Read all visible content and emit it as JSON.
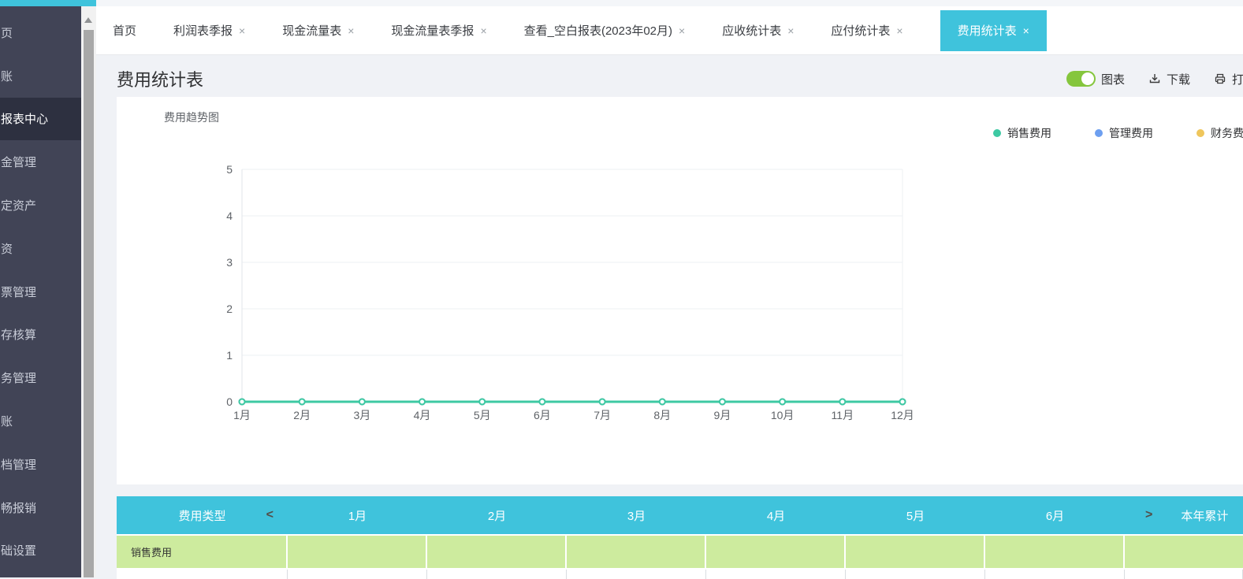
{
  "app": {
    "accent_color": "#3fc3dc"
  },
  "sidebar": {
    "items": [
      {
        "label": "页",
        "active": false
      },
      {
        "label": "账",
        "active": false
      },
      {
        "label": "报表中心",
        "active": true
      },
      {
        "label": "金管理",
        "active": false
      },
      {
        "label": "定资产",
        "active": false
      },
      {
        "label": "资",
        "active": false
      },
      {
        "label": "票管理",
        "active": false
      },
      {
        "label": "存核算",
        "active": false
      },
      {
        "label": "务管理",
        "active": false
      },
      {
        "label": "账",
        "active": false
      },
      {
        "label": "档管理",
        "active": false
      },
      {
        "label": "畅报销",
        "active": false
      },
      {
        "label": "础设置",
        "active": false
      }
    ]
  },
  "tabs": [
    {
      "label": "首页",
      "closable": false,
      "active": false
    },
    {
      "label": "利润表季报",
      "closable": true,
      "active": false
    },
    {
      "label": "现金流量表",
      "closable": true,
      "active": false
    },
    {
      "label": "现金流量表季报",
      "closable": true,
      "active": false
    },
    {
      "label": "查看_空白报表(2023年02月)",
      "closable": true,
      "active": false
    },
    {
      "label": "应收统计表",
      "closable": true,
      "active": false
    },
    {
      "label": "应付统计表",
      "closable": true,
      "active": false
    },
    {
      "label": "费用统计表",
      "closable": true,
      "active": true
    }
  ],
  "page_header": {
    "title": "费用统计表",
    "chart_toggle_label": "图表",
    "toggle_on": true,
    "toggle_color": "#85c63d",
    "download_label": "下载",
    "print_label": "打印"
  },
  "chart_data": {
    "type": "line",
    "title": "费用趋势图",
    "x": [
      "1月",
      "2月",
      "3月",
      "4月",
      "5月",
      "6月",
      "7月",
      "8月",
      "9月",
      "10月",
      "11月",
      "12月"
    ],
    "series": [
      {
        "name": "销售费用",
        "color": "#3dc9a3",
        "values": [
          0,
          0,
          0,
          0,
          0,
          0,
          0,
          0,
          0,
          0,
          0,
          0
        ]
      },
      {
        "name": "管理费用",
        "color": "#6d9ff0",
        "values": [
          0,
          0,
          0,
          0,
          0,
          0,
          0,
          0,
          0,
          0,
          0,
          0
        ]
      },
      {
        "name": "财务费用",
        "color": "#efc65c",
        "values": [
          0,
          0,
          0,
          0,
          0,
          0,
          0,
          0,
          0,
          0,
          0,
          0
        ]
      }
    ],
    "ylim": [
      0,
      5
    ],
    "yticks": [
      0,
      1,
      2,
      3,
      4,
      5
    ],
    "grid": true,
    "legend_position": "top-right",
    "marker": "hollow-circle"
  },
  "table": {
    "header_color": "#3fc3dc",
    "row_color": "#cdeb9e",
    "prev_label": "<",
    "next_label": ">",
    "columns": [
      "费用类型",
      "1月",
      "2月",
      "3月",
      "4月",
      "5月",
      "6月",
      "本年累计"
    ],
    "rows": [
      {
        "name": "销售费用",
        "values": [
          "",
          "",
          "",
          "",
          "",
          "",
          ""
        ]
      }
    ]
  }
}
